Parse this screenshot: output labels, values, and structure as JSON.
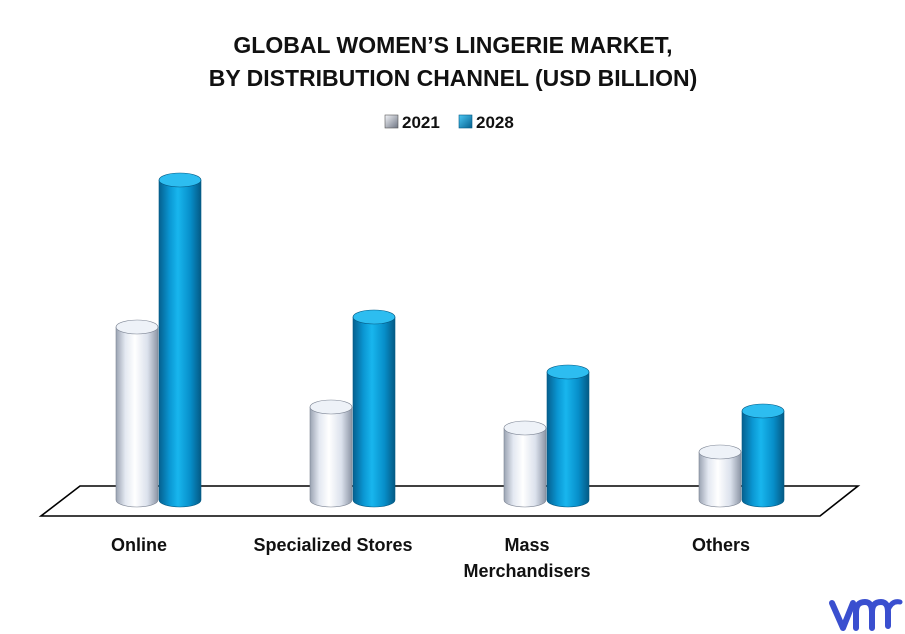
{
  "chart_data": {
    "type": "bar",
    "title_lines": [
      "GLOBAL WOMEN’S LINGERIE MARKET,",
      "BY DISTRIBUTION CHANNEL (USD BILLION)"
    ],
    "categories": [
      "Online",
      "Specialized Stores",
      "Mass Merchandisers",
      "Others"
    ],
    "category_label_lines": [
      [
        "Online"
      ],
      [
        "Specialized Stores"
      ],
      [
        "Mass",
        "Merchandisers"
      ],
      [
        "Others"
      ]
    ],
    "series": [
      {
        "name": "2021",
        "values": [
          17.3,
          9.3,
          7.2,
          4.8
        ],
        "color": "#dde4f0"
      },
      {
        "name": "2028",
        "values": [
          32.0,
          18.3,
          12.8,
          8.9
        ],
        "color": "#0aa2de"
      }
    ],
    "ylim": [
      0,
      34
    ],
    "legend_position": "top-center",
    "grid": false,
    "logo": {
      "text": "vmr",
      "color": "#3a4fcf"
    }
  }
}
